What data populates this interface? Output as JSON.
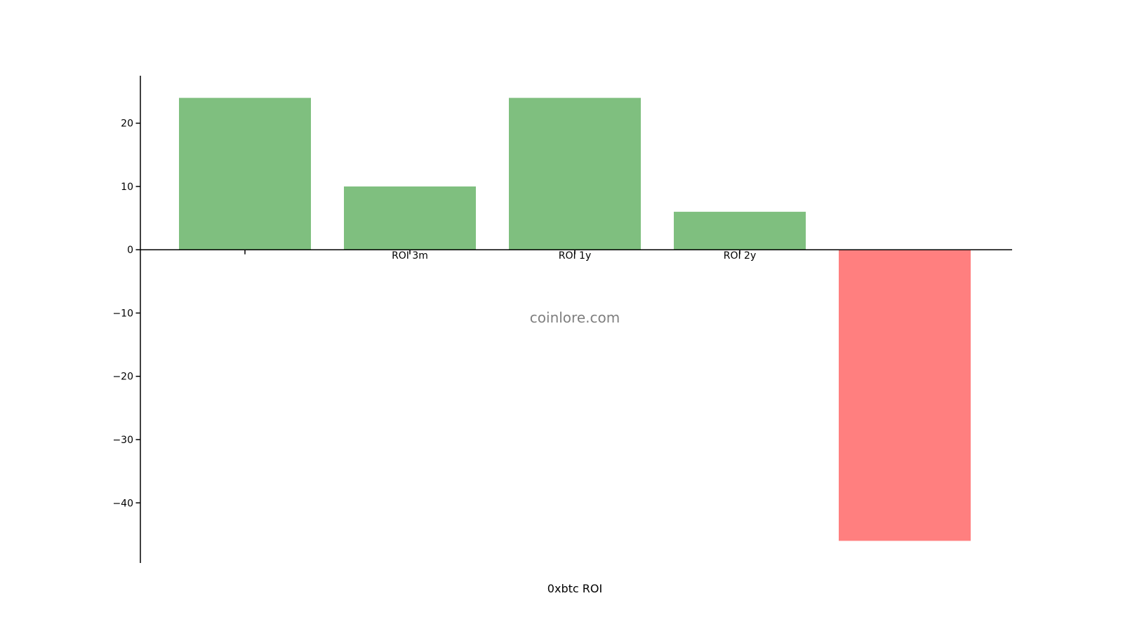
{
  "page": {
    "background_color": "#ffffff"
  },
  "chart_data": {
    "type": "bar",
    "title": "0xbtc ROI",
    "watermark": "coinlore.com",
    "xlabel": "",
    "ylabel": "",
    "categories": [
      "",
      "ROI 3m",
      "ROI 1y",
      "ROI 2y",
      ""
    ],
    "values": [
      24,
      10,
      24,
      6,
      -46
    ],
    "bar_colors": [
      "#7fbf7f",
      "#7fbf7f",
      "#7fbf7f",
      "#7fbf7f",
      "#ff7f7f"
    ],
    "positive_color": "#7fbf7f",
    "negative_color": "#ff7f7f",
    "yticks": [
      20,
      10,
      0,
      -10,
      -20,
      -30,
      -40
    ],
    "ytick_labels": [
      "20",
      "10",
      "0",
      "−10",
      "−20",
      "−30",
      "−40"
    ],
    "ylim": [
      -49.5,
      27.5
    ],
    "grid": false,
    "legend": "none",
    "axis_color": "#000000",
    "tick_label_color": "#000000",
    "title_color": "#000000",
    "watermark_color": "#7f7f7f"
  }
}
